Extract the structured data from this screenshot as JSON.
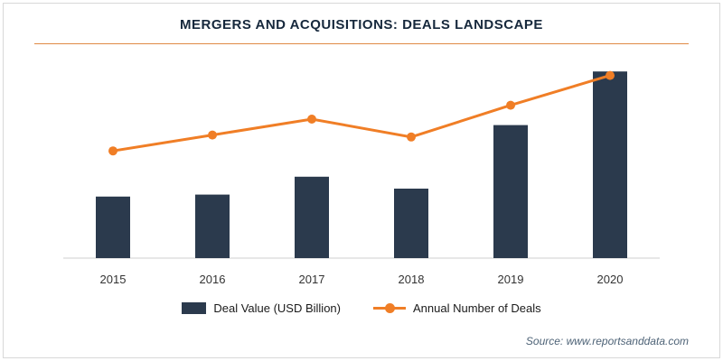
{
  "chart_data": {
    "type": "bar",
    "title": "MERGERS AND ACQUISITIONS: DEALS LANDSCAPE",
    "categories": [
      "2015",
      "2016",
      "2017",
      "2018",
      "2019",
      "2020"
    ],
    "series": [
      {
        "name": "Deal Value (USD Billion)",
        "type": "bar",
        "values": [
          31,
          32,
          41,
          35,
          67,
          94
        ]
      },
      {
        "name": "Annual Number of Deals",
        "type": "line",
        "values": [
          54,
          62,
          70,
          61,
          77,
          92
        ]
      }
    ],
    "xlabel": "",
    "ylabel": "",
    "ylim": [
      0,
      100
    ],
    "grid": false,
    "legend_position": "bottom",
    "colors": {
      "bar": "#2b3a4d",
      "line": "#f07e26",
      "axis": "#cfcfcf"
    }
  },
  "legend": {
    "bar_label": "Deal Value (USD Billion)",
    "line_label": "Annual Number of Deals"
  },
  "source": "Source: www.reportsanddata.com"
}
